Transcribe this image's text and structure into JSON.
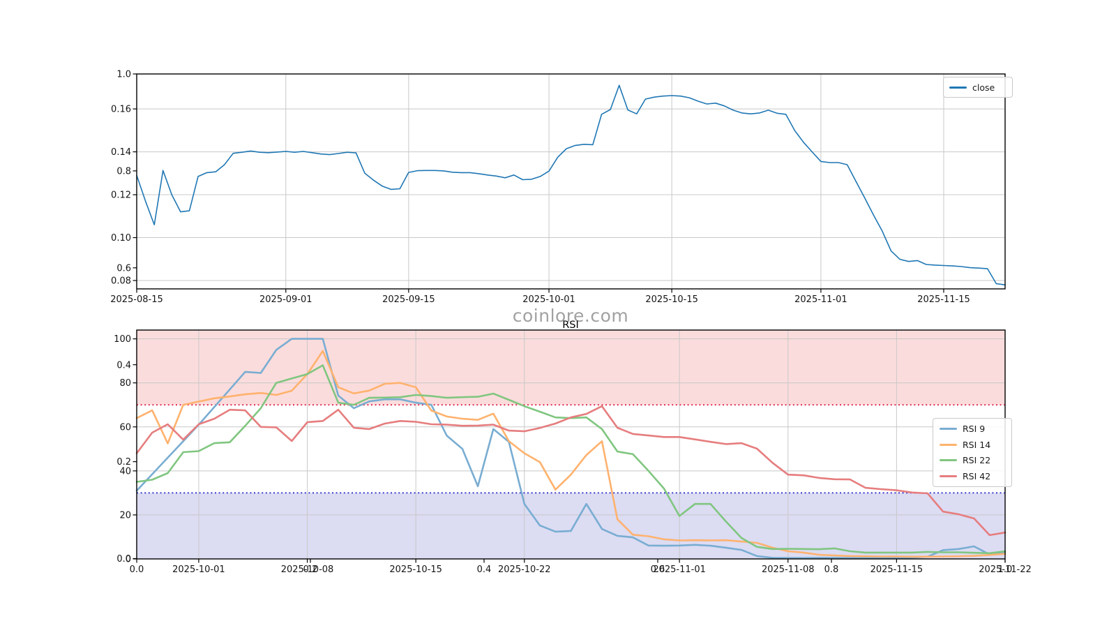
{
  "watermark": "coinlore.com",
  "styles": {
    "background": "#ffffff",
    "grid_color": "#c8c8c8",
    "spine_color": "#000000",
    "tick_label_color": "#141414",
    "watermark_color": "#7d7d7d"
  },
  "overlay_axis": {
    "y_ticks": [
      {
        "label": "1.0",
        "value": 1.0
      },
      {
        "label": "0.8",
        "value": 0.8
      },
      {
        "label": "0.6",
        "value": 0.6
      },
      {
        "label": "0.4",
        "value": 0.4
      },
      {
        "label": "0.2",
        "value": 0.2
      },
      {
        "label": "0.0",
        "value": 0.0
      }
    ],
    "x_ticks": [
      {
        "label": "0.0",
        "value": 0.0
      },
      {
        "label": "0.2",
        "value": 0.2
      },
      {
        "label": "0.4",
        "value": 0.4
      },
      {
        "label": "0.6",
        "value": 0.6
      },
      {
        "label": "0.8",
        "value": 0.8
      },
      {
        "label": "1.0",
        "value": 1.0
      }
    ]
  },
  "chart_data": [
    {
      "type": "line",
      "title": "",
      "start_date": "2025-08-15",
      "freq": "daily",
      "legend_position": "top-right",
      "grid": true,
      "ylim": [
        0.0761,
        0.1763
      ],
      "y_tick_values": [
        0.08,
        0.1,
        0.12,
        0.14,
        0.16
      ],
      "y_tick_labels": [
        "0.08",
        "0.10",
        "0.12",
        "0.14",
        "0.16"
      ],
      "x_tick_indices": [
        0,
        17,
        31,
        47,
        61,
        78,
        92
      ],
      "x_tick_labels": [
        "2025-08-15",
        "2025-09-01",
        "2025-09-15",
        "2025-10-01",
        "2025-10-15",
        "2025-11-01",
        "2025-11-15"
      ],
      "series": [
        {
          "name": "close",
          "color": "#1f77b4",
          "width": 1.6,
          "values": [
            0.129,
            0.117,
            0.106,
            0.1313,
            0.12,
            0.112,
            0.1125,
            0.1285,
            0.1303,
            0.1307,
            0.134,
            0.1393,
            0.1398,
            0.1404,
            0.1398,
            0.1396,
            0.1399,
            0.1402,
            0.1398,
            0.1402,
            0.1396,
            0.139,
            0.1387,
            0.1392,
            0.1398,
            0.1395,
            0.13,
            0.1268,
            0.124,
            0.1225,
            0.1228,
            0.1304,
            0.1312,
            0.1313,
            0.1313,
            0.1311,
            0.1305,
            0.1303,
            0.1303,
            0.1298,
            0.1292,
            0.1287,
            0.1279,
            0.1292,
            0.127,
            0.1272,
            0.1285,
            0.131,
            0.1375,
            0.1415,
            0.143,
            0.1435,
            0.1433,
            0.1575,
            0.1597,
            0.171,
            0.1595,
            0.1577,
            0.1646,
            0.1655,
            0.166,
            0.1662,
            0.166,
            0.1652,
            0.1636,
            0.1623,
            0.1627,
            0.1614,
            0.1594,
            0.1581,
            0.1577,
            0.1581,
            0.1594,
            0.158,
            0.1575,
            0.15,
            0.1445,
            0.14,
            0.1355,
            0.135,
            0.135,
            0.134,
            0.1262,
            0.1185,
            0.1105,
            0.103,
            0.0938,
            0.0899,
            0.0889,
            0.0893,
            0.0875,
            0.0872,
            0.087,
            0.0868,
            0.0865,
            0.086,
            0.0858,
            0.0855,
            0.0785,
            0.078
          ]
        }
      ]
    },
    {
      "type": "line",
      "title": "RSI",
      "start_date": "2025-09-27",
      "freq": "daily",
      "legend_position": "right",
      "grid": true,
      "ylim": [
        0,
        104
      ],
      "y_tick_values": [
        0,
        20,
        40,
        60,
        80,
        100
      ],
      "y_tick_labels": [
        "0",
        "20",
        "40",
        "60",
        "80",
        "100"
      ],
      "x_tick_indices": [
        4,
        11,
        18,
        25,
        35,
        42,
        49,
        56
      ],
      "x_tick_labels": [
        "2025-10-01",
        "2025-10-08",
        "2025-10-15",
        "2025-10-22",
        "2025-11-01",
        "2025-11-08",
        "2025-11-15",
        "2025-11-22"
      ],
      "overbought_level": 70,
      "oversold_level": 30,
      "overbought_band_color": "#fbdcdc",
      "oversold_band_color": "#dcdcf3",
      "overbought_line_color": "#dc143c",
      "oversold_line_color": "#2121c8",
      "series": [
        {
          "name": "RSI 9",
          "color": "#79add2",
          "width": 2.6,
          "values": [
            31,
            38.5,
            46,
            53.5,
            61,
            69,
            77,
            85,
            84.5,
            95,
            100,
            100,
            100,
            74.2,
            68.5,
            71.6,
            72.5,
            72.5,
            71,
            70,
            56,
            50,
            33,
            59,
            53.2,
            25,
            15.2,
            12.4,
            12.7,
            25,
            13.6,
            10.5,
            9.8,
            6.1,
            6,
            6.1,
            6.4,
            6,
            5.1,
            4.1,
            1.3,
            0.5,
            0.4,
            0.4,
            0.5,
            0.5,
            0.4,
            0.4,
            0.5,
            0.5,
            0.6,
            1,
            4,
            4.5,
            5.7,
            2,
            3
          ]
        },
        {
          "name": "RSI 14",
          "color": "#ffb26e",
          "width": 2.6,
          "values": [
            64,
            67.5,
            52.5,
            70,
            71.5,
            73,
            73.8,
            74.8,
            75.4,
            74.5,
            76.4,
            84,
            94.5,
            78,
            75.2,
            76.5,
            79.6,
            80,
            78,
            67.4,
            64.7,
            63.7,
            63.2,
            66,
            53.5,
            48,
            44,
            31.5,
            38.3,
            47.2,
            53.5,
            18,
            11,
            10.3,
            8.9,
            8.4,
            8.5,
            8.4,
            8.5,
            7.9,
            7.3,
            5.1,
            3.5,
            2.9,
            1.9,
            1.6,
            1.3,
            1.2,
            1.1,
            1.1,
            1,
            1,
            1.1,
            1.2,
            1.4,
            1.8,
            2.3
          ]
        },
        {
          "name": "RSI 22",
          "color": "#80c680",
          "width": 2.6,
          "values": [
            35,
            36,
            39,
            48.5,
            49,
            52.6,
            53,
            60.5,
            68.5,
            80,
            82,
            84,
            88,
            71,
            70,
            73.2,
            73.3,
            73.5,
            74.5,
            74,
            73.2,
            73.5,
            73.7,
            75.1,
            72.3,
            69.4,
            66.9,
            64.3,
            64,
            64.3,
            59,
            48.8,
            47.6,
            40,
            32,
            19.5,
            25,
            25,
            17,
            9.5,
            5.5,
            4.5,
            4.6,
            4.5,
            4.4,
            4.8,
            3.5,
            2.9,
            2.9,
            2.9,
            2.9,
            3.2,
            3,
            3,
            2.8,
            2.6,
            3.5
          ]
        },
        {
          "name": "RSI 42",
          "color": "#e67d7e",
          "width": 2.6,
          "values": [
            48,
            57.4,
            61.2,
            54.2,
            61.2,
            63.7,
            67.8,
            67.5,
            60,
            59.8,
            53.6,
            62.1,
            62.7,
            67.8,
            59.6,
            59,
            61.5,
            62.7,
            62.3,
            61.2,
            61,
            60.5,
            60.6,
            61,
            58.3,
            58,
            59.5,
            61.5,
            64.3,
            65.9,
            69.4,
            59.6,
            56.8,
            56.1,
            55.4,
            55.4,
            54.3,
            53.2,
            52.2,
            52.6,
            50.1,
            43.7,
            38.3,
            38,
            36.8,
            36.2,
            36.1,
            32.3,
            31.7,
            31.2,
            30.2,
            29.8,
            21.5,
            20.3,
            18.4,
            10.8,
            12
          ]
        }
      ]
    }
  ]
}
